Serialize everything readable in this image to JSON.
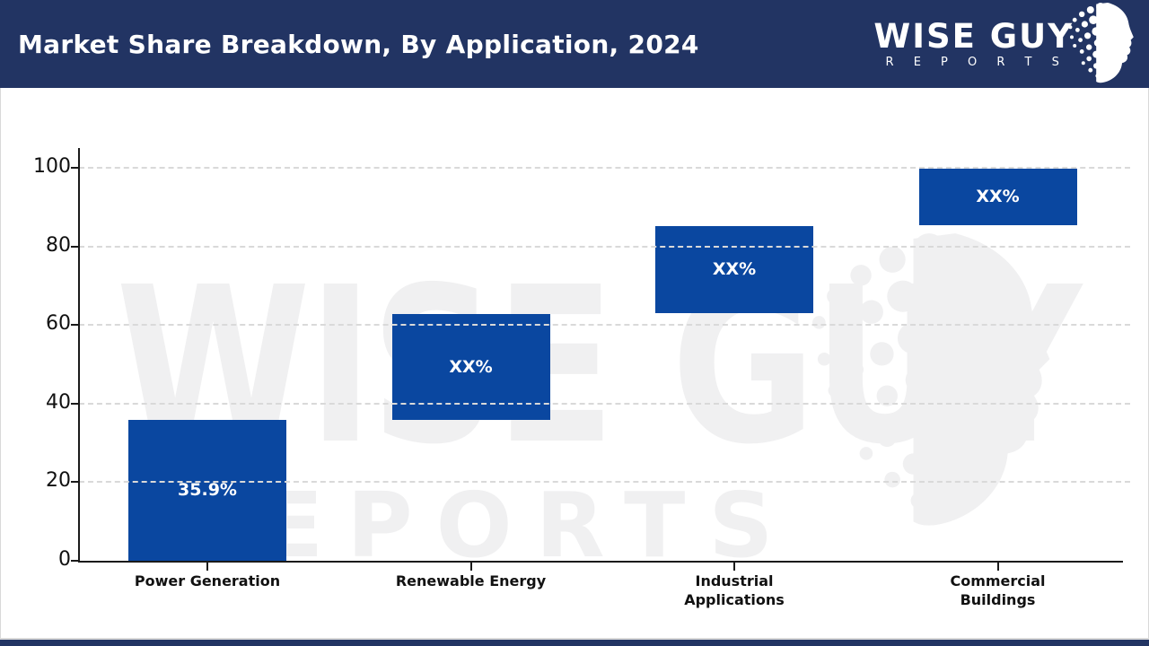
{
  "header": {
    "title": "Market Share Breakdown, By Application, 2024",
    "bg_color": "#223463",
    "logo": {
      "name": "Wise Guy Reports",
      "line1": "WISE GUY",
      "line2": "R E P O R T S"
    }
  },
  "watermark": {
    "line1": "WISE GUY",
    "line2": "REPORTS"
  },
  "chart_data": {
    "type": "bar",
    "subtype": "waterfall",
    "title": "Market Share Breakdown, By Application, 2024",
    "categories": [
      "Power Generation",
      "Renewable Energy",
      "Industrial Applications",
      "Commercial Buildings"
    ],
    "category_label_lines": [
      "Power Generation",
      "Renewable Energy",
      "Industrial\nApplications",
      "Commercial\nBuildings"
    ],
    "series": [
      {
        "name": "Market share (%)",
        "segments": [
          {
            "category": "Power Generation",
            "start": 0,
            "end": 35.9,
            "label": "35.9%"
          },
          {
            "category": "Renewable Energy",
            "start": 35.9,
            "end": 62.8,
            "label": "XX%"
          },
          {
            "category": "Industrial Applications",
            "start": 63.0,
            "end": 85.2,
            "label": "XX%"
          },
          {
            "category": "Commercial Buildings",
            "start": 85.4,
            "end": 99.8,
            "label": "XX%"
          }
        ]
      }
    ],
    "ylim": [
      0,
      100
    ],
    "yticks": [
      0,
      20,
      40,
      60,
      80,
      100
    ],
    "grid": "horizontal-dashed",
    "legend": "none",
    "bar_color": "#0a47a0",
    "bar_label_color": "#ffffff",
    "axis_color": "#1a1a1a",
    "grid_color": "#d9d9d9"
  }
}
